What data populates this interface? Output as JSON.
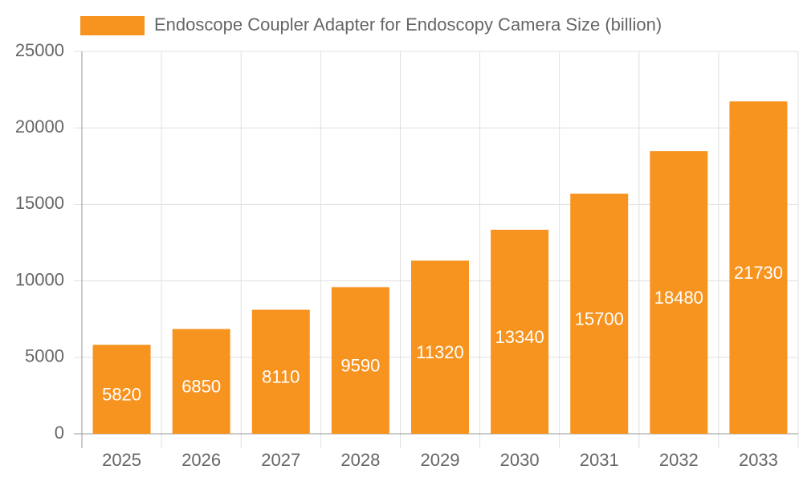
{
  "chart_data": {
    "type": "bar",
    "categories": [
      "2025",
      "2026",
      "2027",
      "2028",
      "2029",
      "2030",
      "2031",
      "2032",
      "2033"
    ],
    "series": [
      {
        "name": "Endoscope Coupler Adapter for Endoscopy Camera Size (billion)",
        "color": "#f79420",
        "values": [
          5820,
          6850,
          8110,
          9590,
          11320,
          13340,
          15700,
          18480,
          21730
        ]
      }
    ],
    "ylim": [
      0,
      25000
    ],
    "yticks": [
      0,
      5000,
      10000,
      15000,
      20000,
      25000
    ],
    "grid": true
  }
}
